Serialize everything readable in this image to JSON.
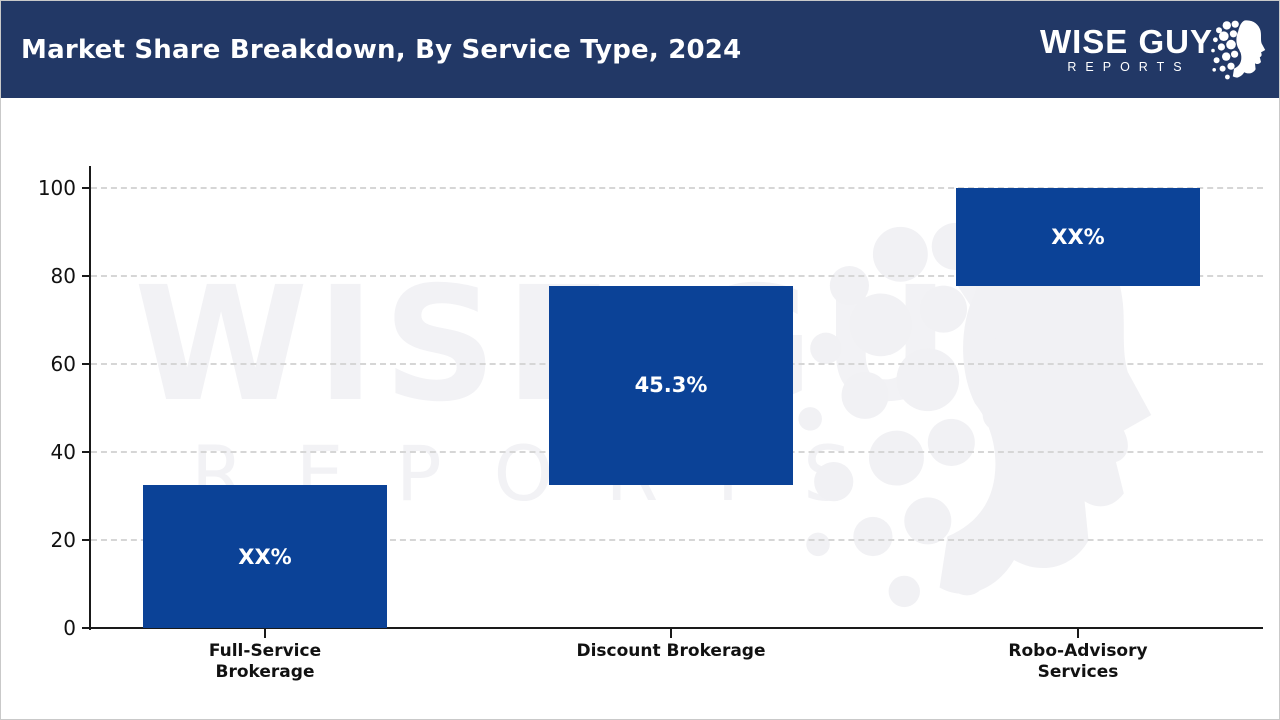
{
  "header": {
    "title": "Market Share Breakdown, By Service Type, 2024",
    "logo": {
      "line1": "WISE GUY",
      "line2": "REPORTS"
    }
  },
  "watermark": {
    "line1": "WISE GUY",
    "line2": "REPORTS"
  },
  "chart_data": {
    "type": "bar",
    "subtype": "waterfall",
    "title": "Market Share Breakdown, By Service Type, 2024",
    "categories": [
      [
        "Full-Service",
        "Brokerage"
      ],
      [
        "Discount Brokerage"
      ],
      [
        "Robo-Advisory",
        "Services"
      ]
    ],
    "segments": [
      {
        "category": "Full-Service Brokerage",
        "label": "XX%",
        "start": 0,
        "end": 32.5
      },
      {
        "category": "Discount Brokerage",
        "label": "45.3%",
        "start": 32.5,
        "end": 77.8
      },
      {
        "category": "Robo-Advisory Services",
        "label": "XX%",
        "start": 77.8,
        "end": 100
      }
    ],
    "values": [
      32.5,
      45.3,
      22.2
    ],
    "yticks": [
      0,
      20,
      40,
      60,
      80,
      100
    ],
    "ylim": [
      0,
      105
    ],
    "xlabel": "",
    "ylabel": "",
    "legend": "none",
    "grid": "horizontal-dashed",
    "colors": {
      "bar": "#0b4297",
      "grid": "#d6d6d6",
      "axis": "#1a1a1a",
      "bar_label": "#ffffff",
      "header_bg": "#223866"
    }
  }
}
